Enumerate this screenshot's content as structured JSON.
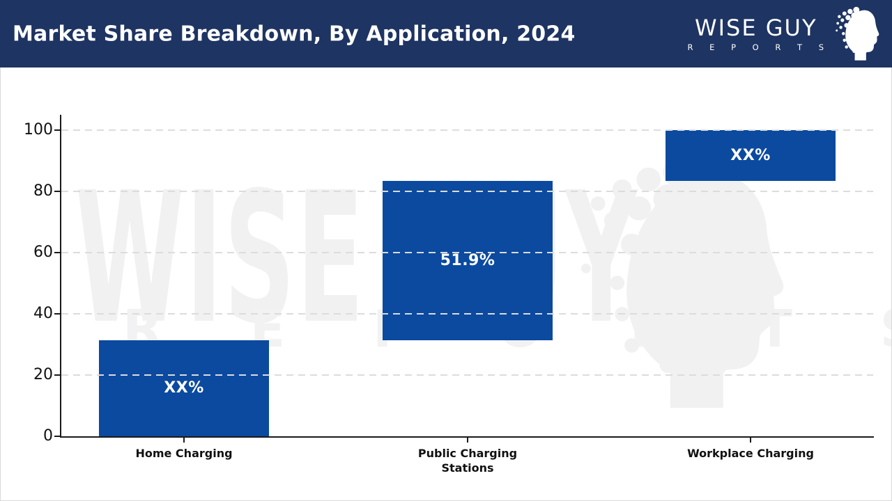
{
  "header": {
    "title": "Market Share Breakdown, By Application, 2024",
    "background_color": "#1e3462",
    "logo": {
      "line1": "WISE GUY",
      "line2": "R E P O R T S"
    }
  },
  "watermark": {
    "line1": "WISE GUY",
    "line2": "R E P O R T S"
  },
  "chart_data": {
    "type": "bar",
    "subtype": "floating-range-bars",
    "title": "Market Share Breakdown, By Application, 2024",
    "categories": [
      "Home Charging",
      "Public Charging Stations",
      "Workplace Charging"
    ],
    "series": [
      {
        "name": "Market Share",
        "segments": [
          {
            "category": "Home Charging",
            "start": 0,
            "end": 31.4,
            "label": "XX%"
          },
          {
            "category": "Public Charging Stations",
            "start": 31.4,
            "end": 83.3,
            "label": "51.9%"
          },
          {
            "category": "Workplace Charging",
            "start": 83.3,
            "end": 100,
            "label": "XX%"
          }
        ]
      }
    ],
    "bar_labels": [
      "XX%",
      "51.9%",
      "XX%"
    ],
    "yticks": [
      0,
      20,
      40,
      60,
      80,
      100
    ],
    "ylim": [
      0,
      105
    ],
    "xlabel": "",
    "ylabel": "",
    "grid": "horizontal-dashed",
    "legend": "none",
    "bar_color": "#0b4a9f",
    "grid_color": "#dcdcdd",
    "axis_color": "#1a1a1a"
  }
}
